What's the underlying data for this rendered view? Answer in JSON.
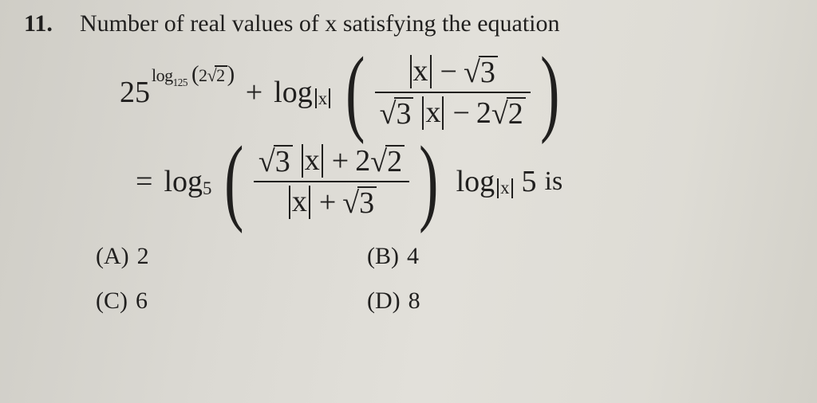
{
  "question": {
    "number": "11.",
    "prompt": "Number of real values of x satisfying the equation",
    "trailing_word": "is"
  },
  "math": {
    "base25": "25",
    "log": "log",
    "sub125": "125",
    "twoRootTwo_two": "2",
    "twoRootTwo_rad": "2",
    "plus": "+",
    "absx": "x",
    "minus": "−",
    "root3": "3",
    "root2": "2",
    "equals": "=",
    "sub5": "5",
    "five": "5"
  },
  "options": {
    "a": {
      "label": "(A)",
      "text": "2"
    },
    "b": {
      "label": "(B)",
      "text": "4"
    },
    "c": {
      "label": "(C)",
      "text": "6"
    },
    "d": {
      "label": "(D)",
      "text": "8"
    }
  },
  "style": {
    "text_color": "#201f1e",
    "bg_color": "#dcdad3"
  }
}
